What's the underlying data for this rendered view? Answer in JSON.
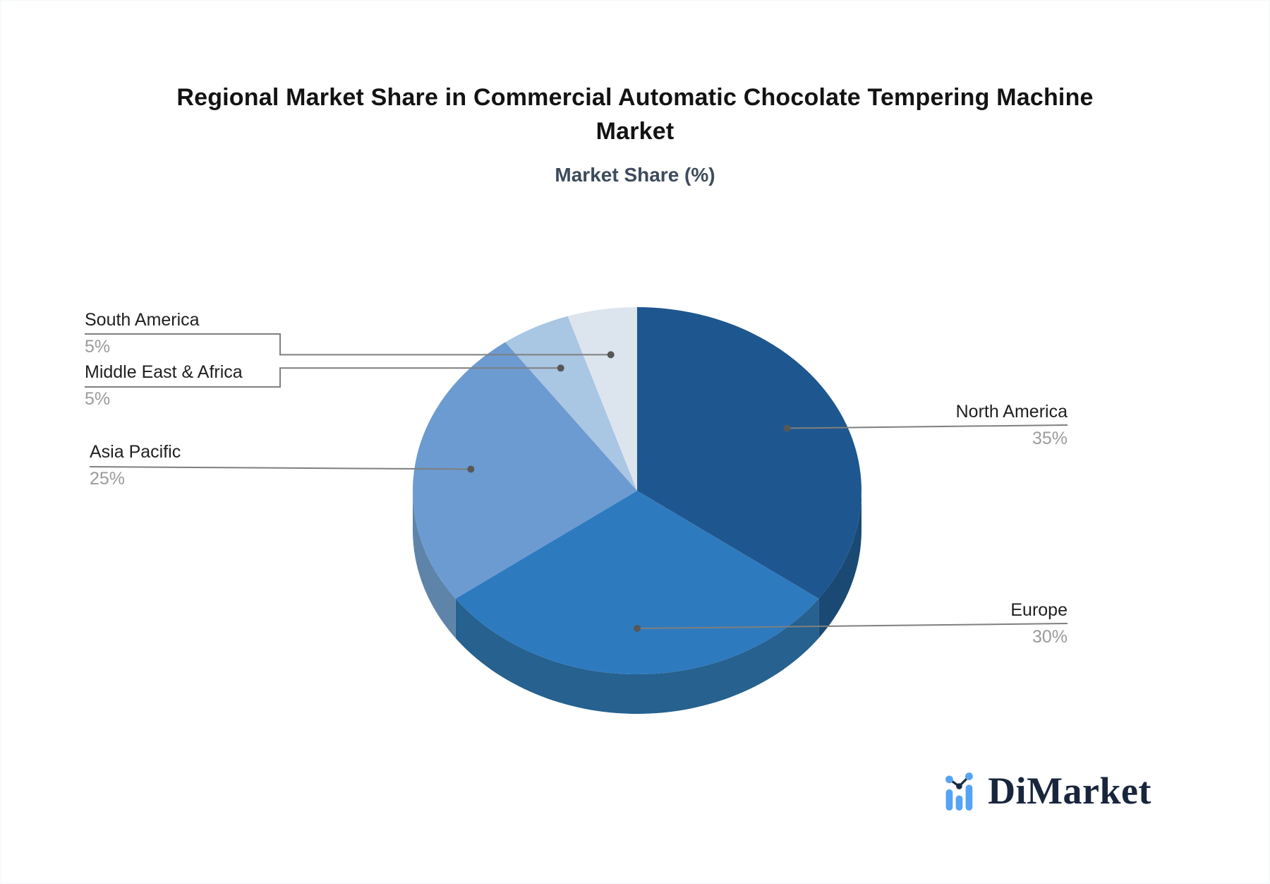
{
  "header": {
    "title_lines": [
      "Regional Market Share in Commercial Automatic Chocolate Tempering Machine",
      "Market"
    ],
    "subtitle": "Market Share (%)"
  },
  "chart_data": {
    "type": "pie",
    "style": "3d-pie",
    "title": "Regional Market Share in Commercial Automatic Chocolate Tempering Machine Market",
    "subtitle": "Market Share (%)",
    "unit": "%",
    "start_angle_deg": 0,
    "clockwise": true,
    "legend": false,
    "series": [
      {
        "name": "North America",
        "value": 35,
        "pct": "35%",
        "color": "#1e578f",
        "side_color": "#1a4a73",
        "label_side": "right"
      },
      {
        "name": "Europe",
        "value": 30,
        "pct": "30%",
        "color": "#2e7abf",
        "side_color": "#26618f",
        "label_side": "right"
      },
      {
        "name": "Asia Pacific",
        "value": 25,
        "pct": "25%",
        "color": "#6b9bd0",
        "side_color": "#5f84aa",
        "label_side": "left"
      },
      {
        "name": "Middle East & Africa",
        "value": 5,
        "pct": "5%",
        "color": "#a9c6e3",
        "side_color": "#92abc5",
        "label_side": "left"
      },
      {
        "name": "South America",
        "value": 5,
        "pct": "5%",
        "color": "#dce4ee",
        "side_color": "#bec9d8",
        "label_side": "left"
      }
    ],
    "leader_line_color": "#7f7f7f",
    "leader_dot_color": "#575757"
  },
  "logo": {
    "text": "DiMarket",
    "icon": "bar-chart-logo-icon",
    "bar_color": "#54a3f4",
    "accent_color": "#1b2a44"
  }
}
